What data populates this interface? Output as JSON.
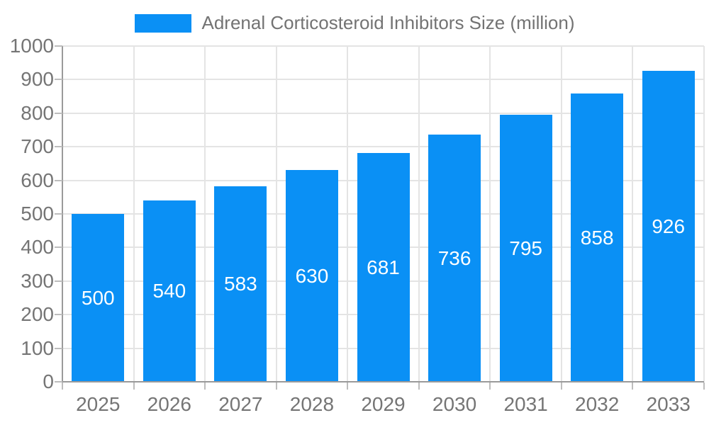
{
  "legend": {
    "label": "Adrenal Corticosteroid Inhibitors Size (million)"
  },
  "chart_data": {
    "type": "bar",
    "title": "Adrenal Corticosteroid Inhibitors Size (million)",
    "categories": [
      "2025",
      "2026",
      "2027",
      "2028",
      "2029",
      "2030",
      "2031",
      "2032",
      "2033"
    ],
    "values": [
      500,
      540,
      583,
      630,
      681,
      736,
      795,
      858,
      926
    ],
    "xlabel": "",
    "ylabel": "",
    "ylim": [
      0,
      1000
    ],
    "ytick_step": 100,
    "grid": true,
    "legend_position": "top-center",
    "value_label_position": "inside-center",
    "bar_color": "#0a90f5",
    "value_label_color": "#ffffff",
    "axis_label_color": "#757575",
    "gridline_color": "#e4e4e4",
    "axis_line_color": "#9a9a9a"
  }
}
